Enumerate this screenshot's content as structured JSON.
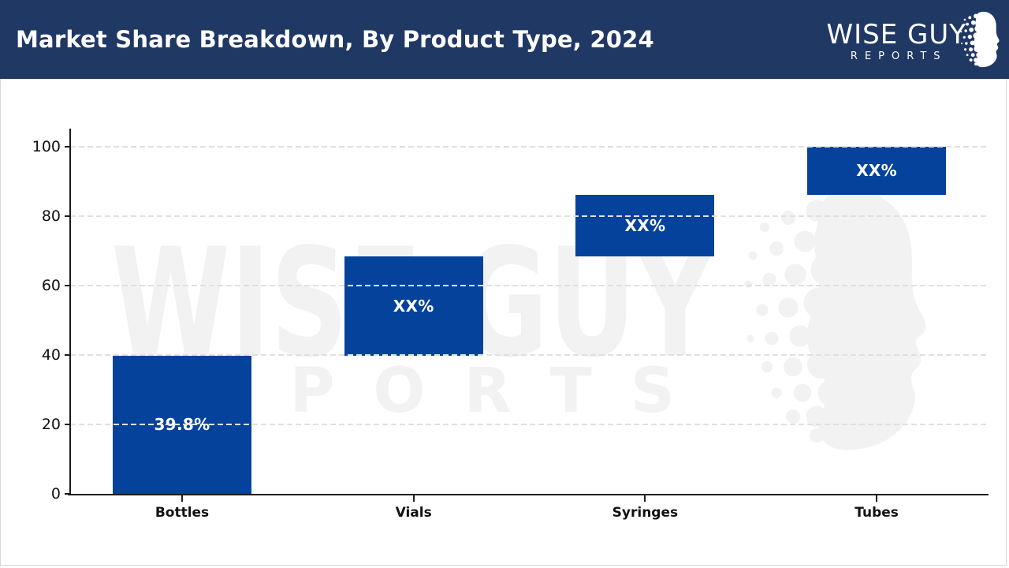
{
  "header": {
    "title": "Market Share Breakdown, By Product Type, 2024",
    "logo": {
      "line1": "WISE GUY",
      "line2": "REPORTS"
    }
  },
  "watermark": {
    "line1": "WISE GUY",
    "line2": "R E P O R T S"
  },
  "chart_data": {
    "type": "bar",
    "subtype": "waterfall",
    "title": "Market Share Breakdown, By Product Type, 2024",
    "categories": [
      "Bottles",
      "Vials",
      "Syringes",
      "Tubes"
    ],
    "segments": [
      {
        "category": "Bottles",
        "start": 0,
        "end": 39.8,
        "label": "39.8%"
      },
      {
        "category": "Vials",
        "start": 39.8,
        "end": 68.5,
        "label": "XX%"
      },
      {
        "category": "Syringes",
        "start": 68.5,
        "end": 86.1,
        "label": "XX%"
      },
      {
        "category": "Tubes",
        "start": 86.1,
        "end": 100.1,
        "label": "XX%"
      }
    ],
    "y_ticks": [
      0,
      20,
      40,
      60,
      80,
      100
    ],
    "ylim": [
      0,
      105
    ],
    "xlabel": "",
    "ylabel": "",
    "grid": "horizontal-dashed",
    "legend": "none",
    "colors": {
      "bar": "#05429B",
      "bar_label": "#ffffff",
      "axis": "#1c1c1c",
      "grid": "#e0e0e0",
      "tick_label": "#111111"
    }
  },
  "colors": {
    "header_bg": "#203864",
    "content_bg": "#ffffff",
    "border": "#d8d8d8",
    "watermark": "#f2f2f2"
  }
}
